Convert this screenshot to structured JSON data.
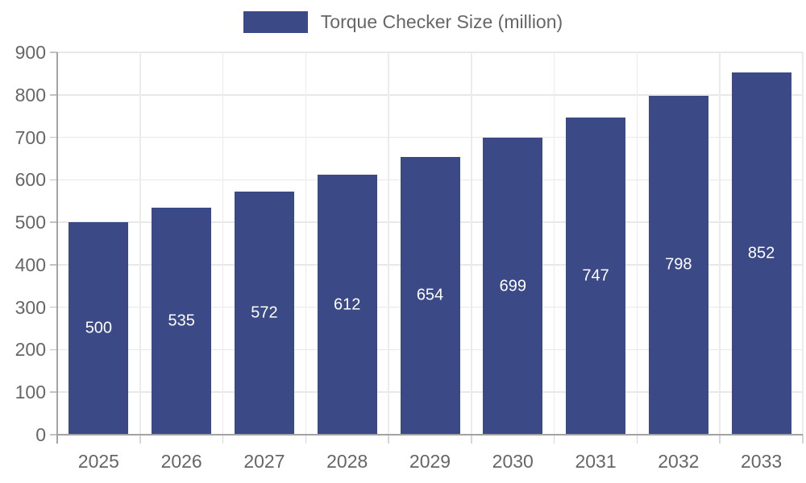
{
  "legend": {
    "label": "Torque Checker Size (million)"
  },
  "chart_data": {
    "type": "bar",
    "categories": [
      "2025",
      "2026",
      "2027",
      "2028",
      "2029",
      "2030",
      "2031",
      "2032",
      "2033"
    ],
    "series": [
      {
        "name": "Torque Checker Size (million)",
        "values": [
          500,
          535,
          572,
          612,
          654,
          699,
          747,
          798,
          852
        ],
        "color": "#3B4A86"
      }
    ],
    "value_labels": {
      "visible": true,
      "position": "inside-center",
      "color": "#ffffff"
    },
    "xlabel": "",
    "ylabel": "",
    "ylim": [
      0,
      900
    ],
    "yticks": [
      0,
      100,
      200,
      300,
      400,
      500,
      600,
      700,
      800,
      900
    ],
    "grid": true,
    "legend_position": "top-center",
    "colors": {
      "bar": "#3B4A86",
      "axis_line": "#a3a3a3",
      "gridline": "#e8e8e8",
      "tick": "#c2c2c2",
      "axis_text": "#666666",
      "legend_text": "#666666",
      "background": "#ffffff"
    }
  }
}
